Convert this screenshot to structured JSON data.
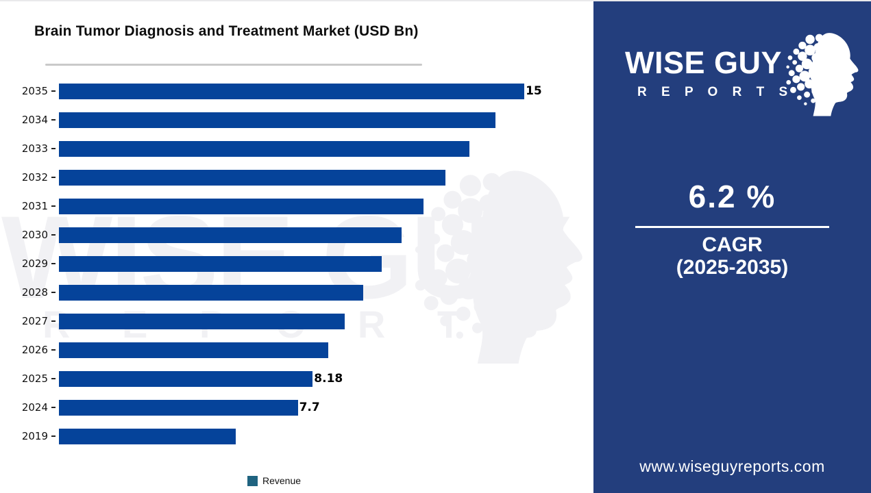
{
  "chart_data": {
    "type": "bar",
    "orientation": "horizontal",
    "title": "Brain Tumor Diagnosis and Treatment Market (USD Bn)",
    "categories": [
      "2035",
      "2034",
      "2033",
      "2032",
      "2031",
      "2030",
      "2029",
      "2028",
      "2027",
      "2026",
      "2025",
      "2024",
      "2019"
    ],
    "values": [
      15,
      14.06,
      13.24,
      12.46,
      11.74,
      11.05,
      10.41,
      9.8,
      9.22,
      8.69,
      8.18,
      7.7,
      5.7
    ],
    "shown_value_labels": [
      "15",
      "",
      "",
      "",
      "",
      "",
      "",
      "",
      "",
      "",
      "8.18",
      "7.7",
      ""
    ],
    "xlabel": "",
    "ylabel": "",
    "xlim": [
      0,
      16.5
    ],
    "grid": false,
    "bar_color": "#05439a",
    "legend_position": "bottom",
    "legend": [
      {
        "label": "Revenue",
        "color": "#1f6380"
      }
    ]
  },
  "watermark": {
    "line1": "WISE GUY",
    "line2": "R E P O R T S"
  },
  "info_panel": {
    "bg_color": "#233e7d",
    "logo": {
      "line1": "WISE GUY",
      "line2": "R E P O R T S"
    },
    "cagr": {
      "value": "6.2 %",
      "label": "CAGR",
      "range": "(2025-2035)"
    },
    "website": "www.wiseguyreports.com"
  }
}
